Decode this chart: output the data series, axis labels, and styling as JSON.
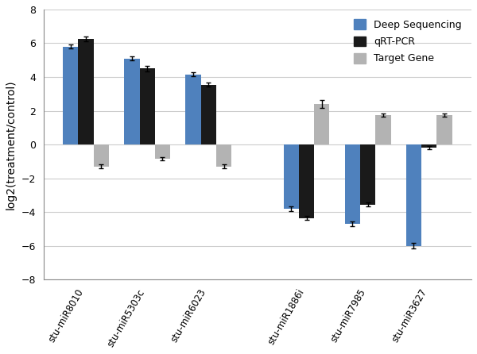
{
  "categories": [
    "stu-miR8010",
    "stu-miR5303c",
    "stu-miR6023",
    "stu-miR1886i",
    "stu-miR7985",
    "stu-miR3627"
  ],
  "deep_seq": [
    5.8,
    5.1,
    4.15,
    -3.8,
    -4.7,
    -6.0
  ],
  "qrt_pcr": [
    6.25,
    4.5,
    3.55,
    -4.35,
    -3.55,
    -0.2
  ],
  "target_gene": [
    -1.3,
    -0.85,
    -1.3,
    2.4,
    1.75,
    1.75
  ],
  "deep_seq_err": [
    0.12,
    0.12,
    0.12,
    0.15,
    0.15,
    0.15
  ],
  "qrt_pcr_err": [
    0.15,
    0.15,
    0.1,
    0.12,
    0.12,
    0.1
  ],
  "target_gene_err": [
    0.12,
    0.1,
    0.12,
    0.25,
    0.1,
    0.1
  ],
  "color_deep": "#4f81bd",
  "color_qrt": "#1a1a1a",
  "color_tgt": "#b3b3b3",
  "ylabel": "log2(treatment/control)",
  "ylim": [
    -8,
    8
  ],
  "yticks": [
    -8,
    -6,
    -4,
    -2,
    0,
    2,
    4,
    6,
    8
  ],
  "legend_labels": [
    "Deep Sequencing",
    "qRT-PCR",
    "Target Gene"
  ],
  "bar_width": 0.25,
  "figsize": [
    6.0,
    4.46
  ],
  "dpi": 100
}
